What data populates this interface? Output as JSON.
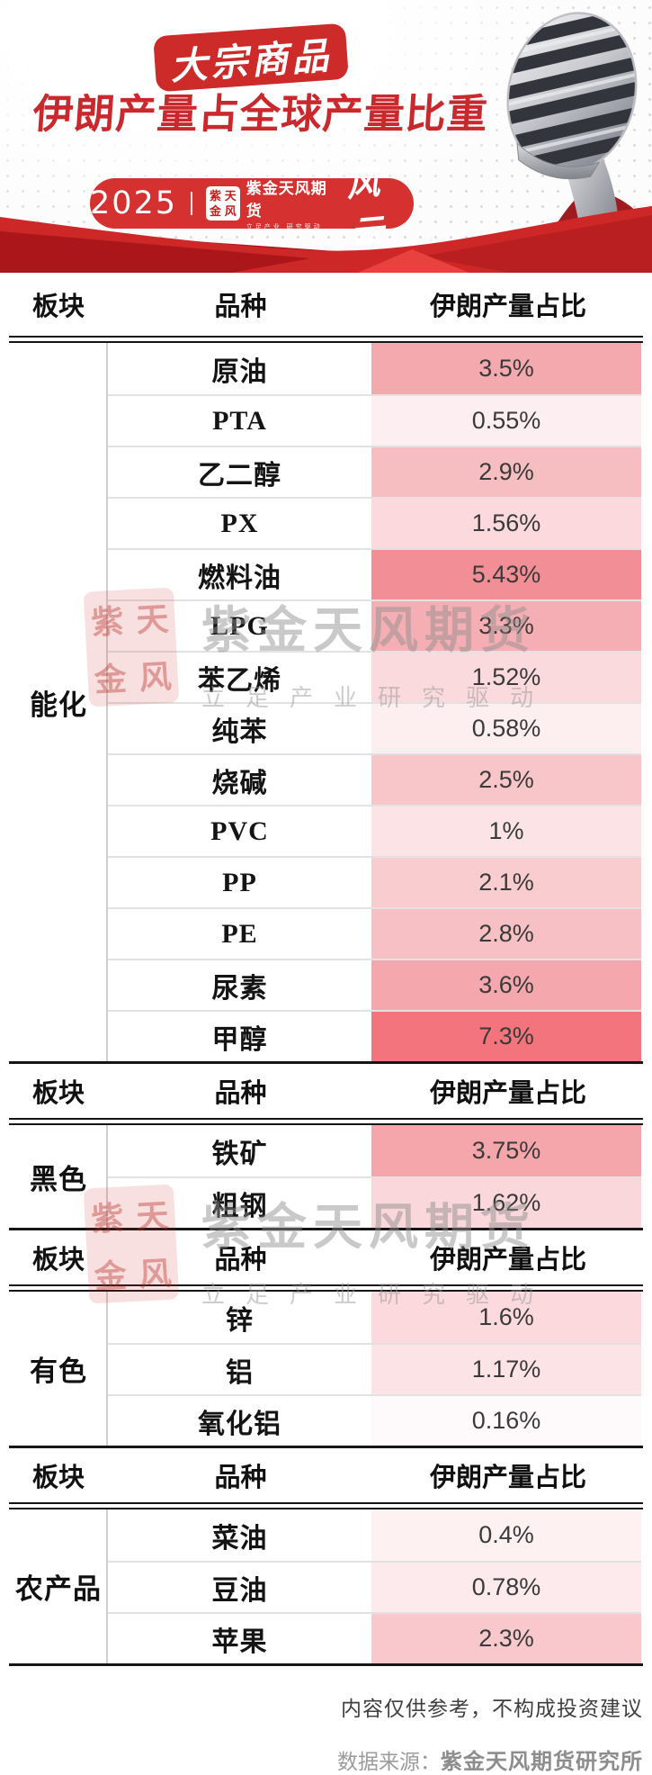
{
  "header": {
    "badge": "大宗商品",
    "title": "伊朗产量占全球产量比重",
    "year": "2025",
    "brand": {
      "name": "紫金天风期货",
      "slogan": "立足产业 研究驱动",
      "wind": "风云",
      "seal_chars": [
        "紫",
        "金",
        "天",
        "风"
      ]
    },
    "colors": {
      "badge_red": "#cd2a2a",
      "title_red": "#c9282d",
      "pill_red": "#d43130",
      "ribbon_red": "#ce2727"
    }
  },
  "table": {
    "columns": [
      "板块",
      "品种",
      "伊朗产量占比"
    ],
    "sections": [
      {
        "name": "能化",
        "rows": [
          {
            "variety": "原油",
            "share": "3.5%",
            "color": "#f4a9ae"
          },
          {
            "variety": "PTA",
            "share": "0.55%",
            "color": "#fdeff1"
          },
          {
            "variety": "乙二醇",
            "share": "2.9%",
            "color": "#f7bec2"
          },
          {
            "variety": "PX",
            "share": "1.56%",
            "color": "#fbd9dc"
          },
          {
            "variety": "燃料油",
            "share": "5.43%",
            "color": "#f28f96"
          },
          {
            "variety": "LPG",
            "share": "3.3%",
            "color": "#f5aeb3"
          },
          {
            "variety": "苯乙烯",
            "share": "1.52%",
            "color": "#fbdadd"
          },
          {
            "variety": "纯苯",
            "share": "0.58%",
            "color": "#fdeef0"
          },
          {
            "variety": "烧碱",
            "share": "2.5%",
            "color": "#f8c5c9"
          },
          {
            "variety": "PVC",
            "share": "1%",
            "color": "#fce4e6"
          },
          {
            "variety": "PP",
            "share": "2.1%",
            "color": "#f9ccd0"
          },
          {
            "variety": "PE",
            "share": "2.8%",
            "color": "#f7c0c4"
          },
          {
            "variety": "尿素",
            "share": "3.6%",
            "color": "#f4a8ad"
          },
          {
            "variety": "甲醇",
            "share": "7.3%",
            "color": "#f3747c"
          }
        ]
      },
      {
        "name": "黑色",
        "rows": [
          {
            "variety": "铁矿",
            "share": "3.75%",
            "color": "#f4a6ab"
          },
          {
            "variety": "粗钢",
            "share": "1.62%",
            "color": "#fad7da"
          }
        ]
      },
      {
        "name": "有色",
        "rows": [
          {
            "variety": "锌",
            "share": "1.6%",
            "color": "#fbd9dc"
          },
          {
            "variety": "铝",
            "share": "1.17%",
            "color": "#fce3e5"
          },
          {
            "variety": "氧化铝",
            "share": "0.16%",
            "color": "#fefafb"
          }
        ]
      },
      {
        "name": "农产品",
        "rows": [
          {
            "variety": "菜油",
            "share": "0.4%",
            "color": "#fdf1f2"
          },
          {
            "variety": "豆油",
            "share": "0.78%",
            "color": "#fceaec"
          },
          {
            "variety": "苹果",
            "share": "2.3%",
            "color": "#f8c8cc"
          }
        ]
      }
    ]
  },
  "watermark": {
    "brand": "紫金天风期货",
    "slogan": "立足产业研究驱动",
    "seal_chars": [
      "紫",
      "金",
      "天",
      "风"
    ]
  },
  "footer": {
    "disclaimer": "内容仅供参考，不构成投资建议",
    "source_label": "数据来源：",
    "source_name": "紫金天风期货研究所"
  },
  "chart_data": {
    "type": "table",
    "title": "大宗商品：伊朗产量占全球产量比重 (2025)",
    "columns": [
      "板块",
      "品种",
      "伊朗产量占比"
    ],
    "rows": [
      [
        "能化",
        "原油",
        3.5
      ],
      [
        "能化",
        "PTA",
        0.55
      ],
      [
        "能化",
        "乙二醇",
        2.9
      ],
      [
        "能化",
        "PX",
        1.56
      ],
      [
        "能化",
        "燃料油",
        5.43
      ],
      [
        "能化",
        "LPG",
        3.3
      ],
      [
        "能化",
        "苯乙烯",
        1.52
      ],
      [
        "能化",
        "纯苯",
        0.58
      ],
      [
        "能化",
        "烧碱",
        2.5
      ],
      [
        "能化",
        "PVC",
        1.0
      ],
      [
        "能化",
        "PP",
        2.1
      ],
      [
        "能化",
        "PE",
        2.8
      ],
      [
        "能化",
        "尿素",
        3.6
      ],
      [
        "能化",
        "甲醇",
        7.3
      ],
      [
        "黑色",
        "铁矿",
        3.75
      ],
      [
        "黑色",
        "粗钢",
        1.62
      ],
      [
        "有色",
        "锌",
        1.6
      ],
      [
        "有色",
        "铝",
        1.17
      ],
      [
        "有色",
        "氧化铝",
        0.16
      ],
      [
        "农产品",
        "菜油",
        0.4
      ],
      [
        "农产品",
        "豆油",
        0.78
      ],
      [
        "农产品",
        "苹果",
        2.3
      ]
    ],
    "value_unit": "%",
    "heatmap": {
      "min": 0,
      "max": 7.3,
      "low_color": "#ffffff",
      "high_color": "#f3737b"
    }
  }
}
